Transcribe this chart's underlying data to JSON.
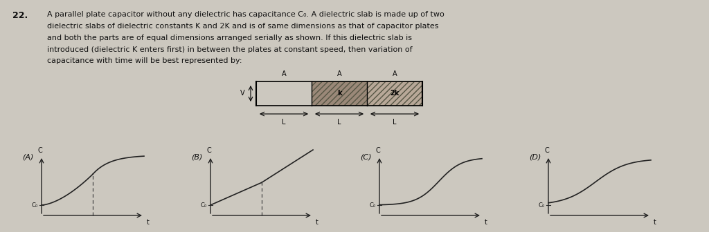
{
  "background_color": "#ccc8bf",
  "text_color": "#111111",
  "graph_line_color": "#222222",
  "axis_color": "#222222",
  "dashed_color": "#444444",
  "hatch_color_k": "#9a8878",
  "hatch_color_2k": "#b8a898",
  "question_number": "22.",
  "question_lines": [
    "A parallel plate capacitor without any dielectric has capacitance C₀. A dielectric slab is made up of two",
    "dielectric slabs of dielectric constants K and 2K and is of same dimensions as that of capacitor plates",
    "and both the parts are of equal dimensions arranged serially as shown. If this dielectric slab is",
    "introduced (dielectric K enters first) in between the plates at constant speed, then variation of",
    "capacitance with time will be best represented by:"
  ],
  "graph_labels": [
    "(A)",
    "(B)",
    "(C)",
    "(D)"
  ],
  "y_label": "C",
  "x_label": "t",
  "c0_label": "C₀",
  "k_label": "k",
  "k2_label": "2k",
  "A_label": "A",
  "V_label": "V",
  "L_label": "L"
}
